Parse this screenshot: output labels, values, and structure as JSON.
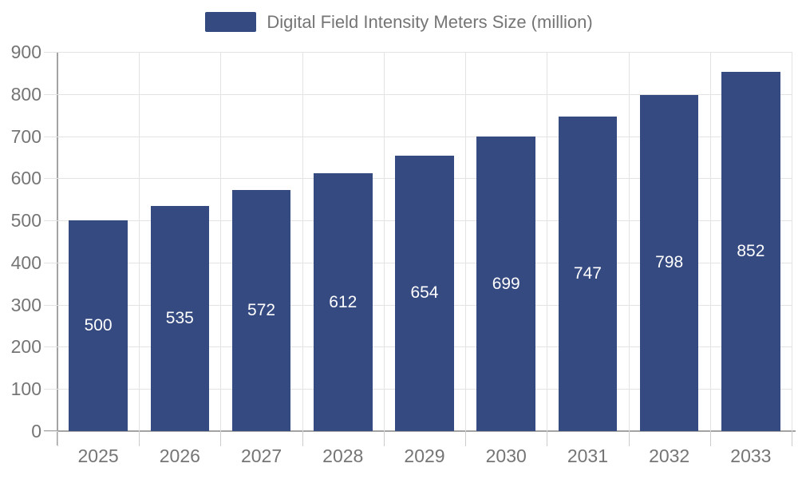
{
  "legend": {
    "label": "Digital Field Intensity Meters Size (million)"
  },
  "chart_data": {
    "type": "bar",
    "title": "Digital Field Intensity Meters Size (million)",
    "categories": [
      "2025",
      "2026",
      "2027",
      "2028",
      "2029",
      "2030",
      "2031",
      "2032",
      "2033"
    ],
    "values": [
      500,
      535,
      572,
      612,
      654,
      699,
      747,
      798,
      852
    ],
    "xlabel": "",
    "ylabel": "",
    "ylim": [
      0,
      900
    ],
    "ytick_step": 100,
    "ytick_labels": [
      "0",
      "100",
      "200",
      "300",
      "400",
      "500",
      "600",
      "700",
      "800",
      "900"
    ],
    "grid": true,
    "legend_position": "top-center",
    "value_labels_shown": true,
    "colors": {
      "bar": "#354a80",
      "value_label": "#ffffff",
      "axis_text": "#757575",
      "legend_text": "#757575",
      "gridline": "#e3e3e3",
      "tick": "#cccccc",
      "axis_line": "#a3a3a3",
      "background": "#ffffff"
    }
  }
}
